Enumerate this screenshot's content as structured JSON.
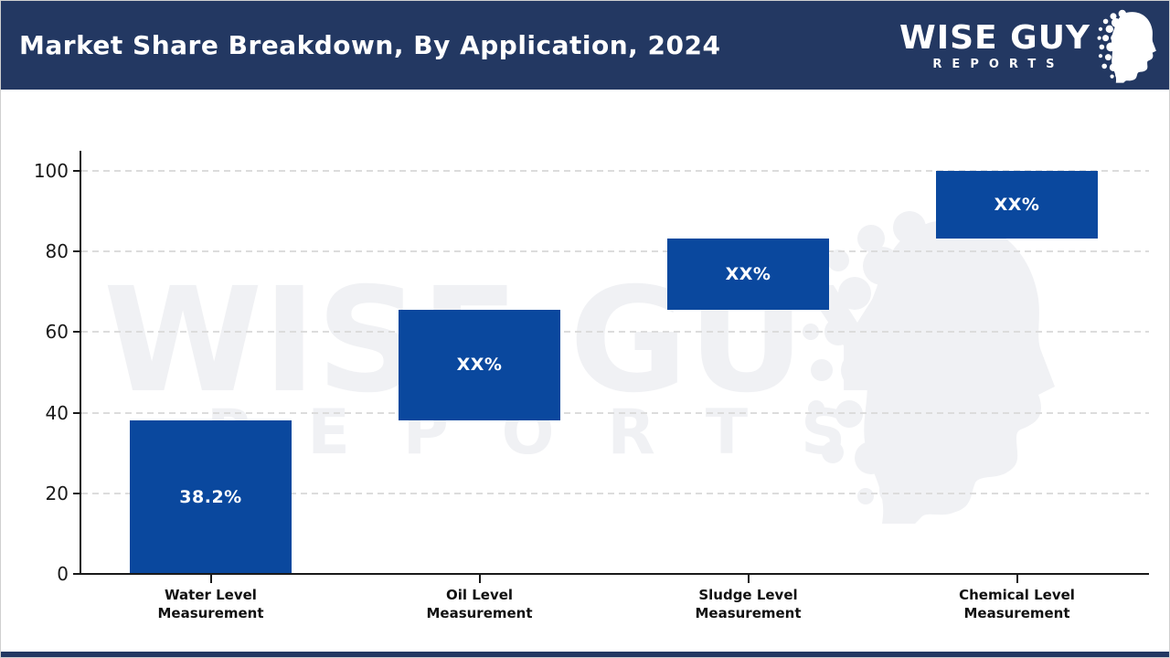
{
  "header": {
    "title": "Market Share Breakdown, By Application, 2024"
  },
  "brand": {
    "line1": "WISE GUY",
    "line2": "REPORTS"
  },
  "watermark": {
    "line1": "WISE GUY",
    "line2": "REPORTS"
  },
  "chart_data": {
    "type": "bar",
    "subtype": "waterfall",
    "title": "Market Share Breakdown, By Application, 2024",
    "categories": [
      "Water Level Measurement",
      "Oil Level Measurement",
      "Sludge Level Measurement",
      "Chemical Level Measurement"
    ],
    "series": [
      {
        "name": "Market share (%)",
        "segments": [
          {
            "category": "Water Level Measurement",
            "start": 0,
            "end": 38.2,
            "label": "38.2%"
          },
          {
            "category": "Oil Level Measurement",
            "start": 38.2,
            "end": 65.5,
            "label": "XX%"
          },
          {
            "category": "Sludge Level Measurement",
            "start": 65.5,
            "end": 83.2,
            "label": "XX%"
          },
          {
            "category": "Chemical Level Measurement",
            "start": 83.2,
            "end": 100,
            "label": "XX%"
          }
        ]
      }
    ],
    "xlabel": "",
    "ylabel": "",
    "ylim": [
      0,
      100
    ],
    "yticks": [
      0,
      20,
      40,
      60,
      80,
      100
    ],
    "grid": "dashed-horizontal",
    "legend": "none",
    "bar_color": "#0a489e",
    "bar_label_color": "#ffffff"
  },
  "colors": {
    "header_bg": "#233862",
    "footer_bg": "#233862",
    "bar": "#0a489e",
    "axis": "#1a1a1a",
    "grid": "#dcdcdc",
    "watermark": "#f0f1f4",
    "page_bg": "#ffffff"
  }
}
